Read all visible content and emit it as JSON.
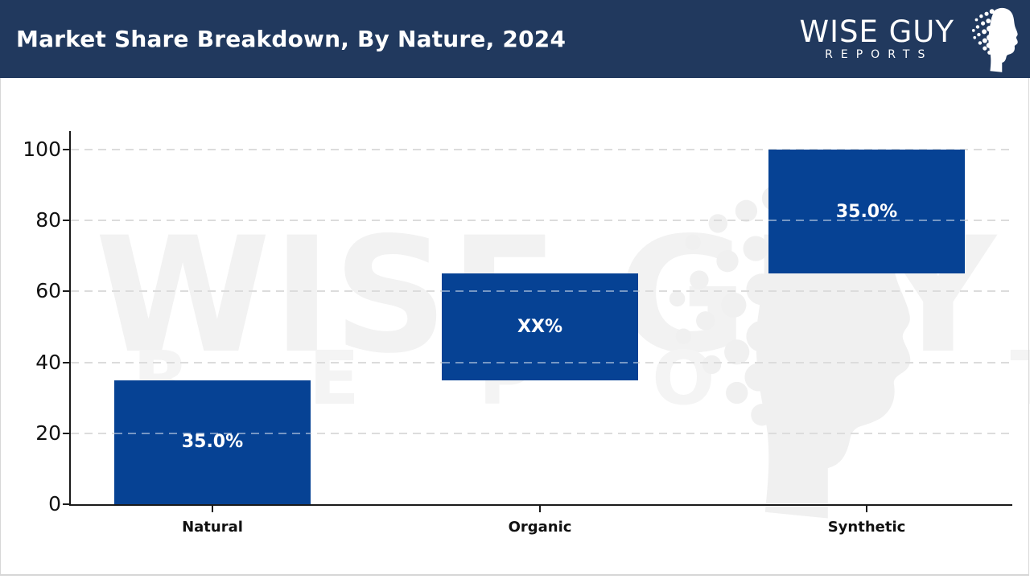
{
  "header": {
    "title": "Market Share Breakdown, By Nature, 2024",
    "bg_color": "#21395E",
    "logo": {
      "line1": "WISE GUY",
      "line2": "REPORTS"
    }
  },
  "watermark": {
    "line1": "WISE GUY",
    "line2": "R E P O R T S"
  },
  "chart_data": {
    "type": "bar",
    "subtype": "floating-waterfall",
    "title": "Market Share Breakdown, By Nature, 2024",
    "categories": [
      "Natural",
      "Organic",
      "Synthetic"
    ],
    "bars": [
      {
        "category": "Natural",
        "start": 0,
        "end": 35,
        "label": "35.0%"
      },
      {
        "category": "Organic",
        "start": 35,
        "end": 65,
        "label": "XX%"
      },
      {
        "category": "Synthetic",
        "start": 65,
        "end": 100,
        "label": "35.0%"
      }
    ],
    "ylim": [
      0,
      100
    ],
    "yticks": [
      0,
      20,
      40,
      60,
      80,
      100
    ],
    "xlabel": "",
    "ylabel": "",
    "bar_color": "#064294",
    "label_color": "#ffffff",
    "grid": "dashed-horizontal",
    "legend": "none"
  }
}
